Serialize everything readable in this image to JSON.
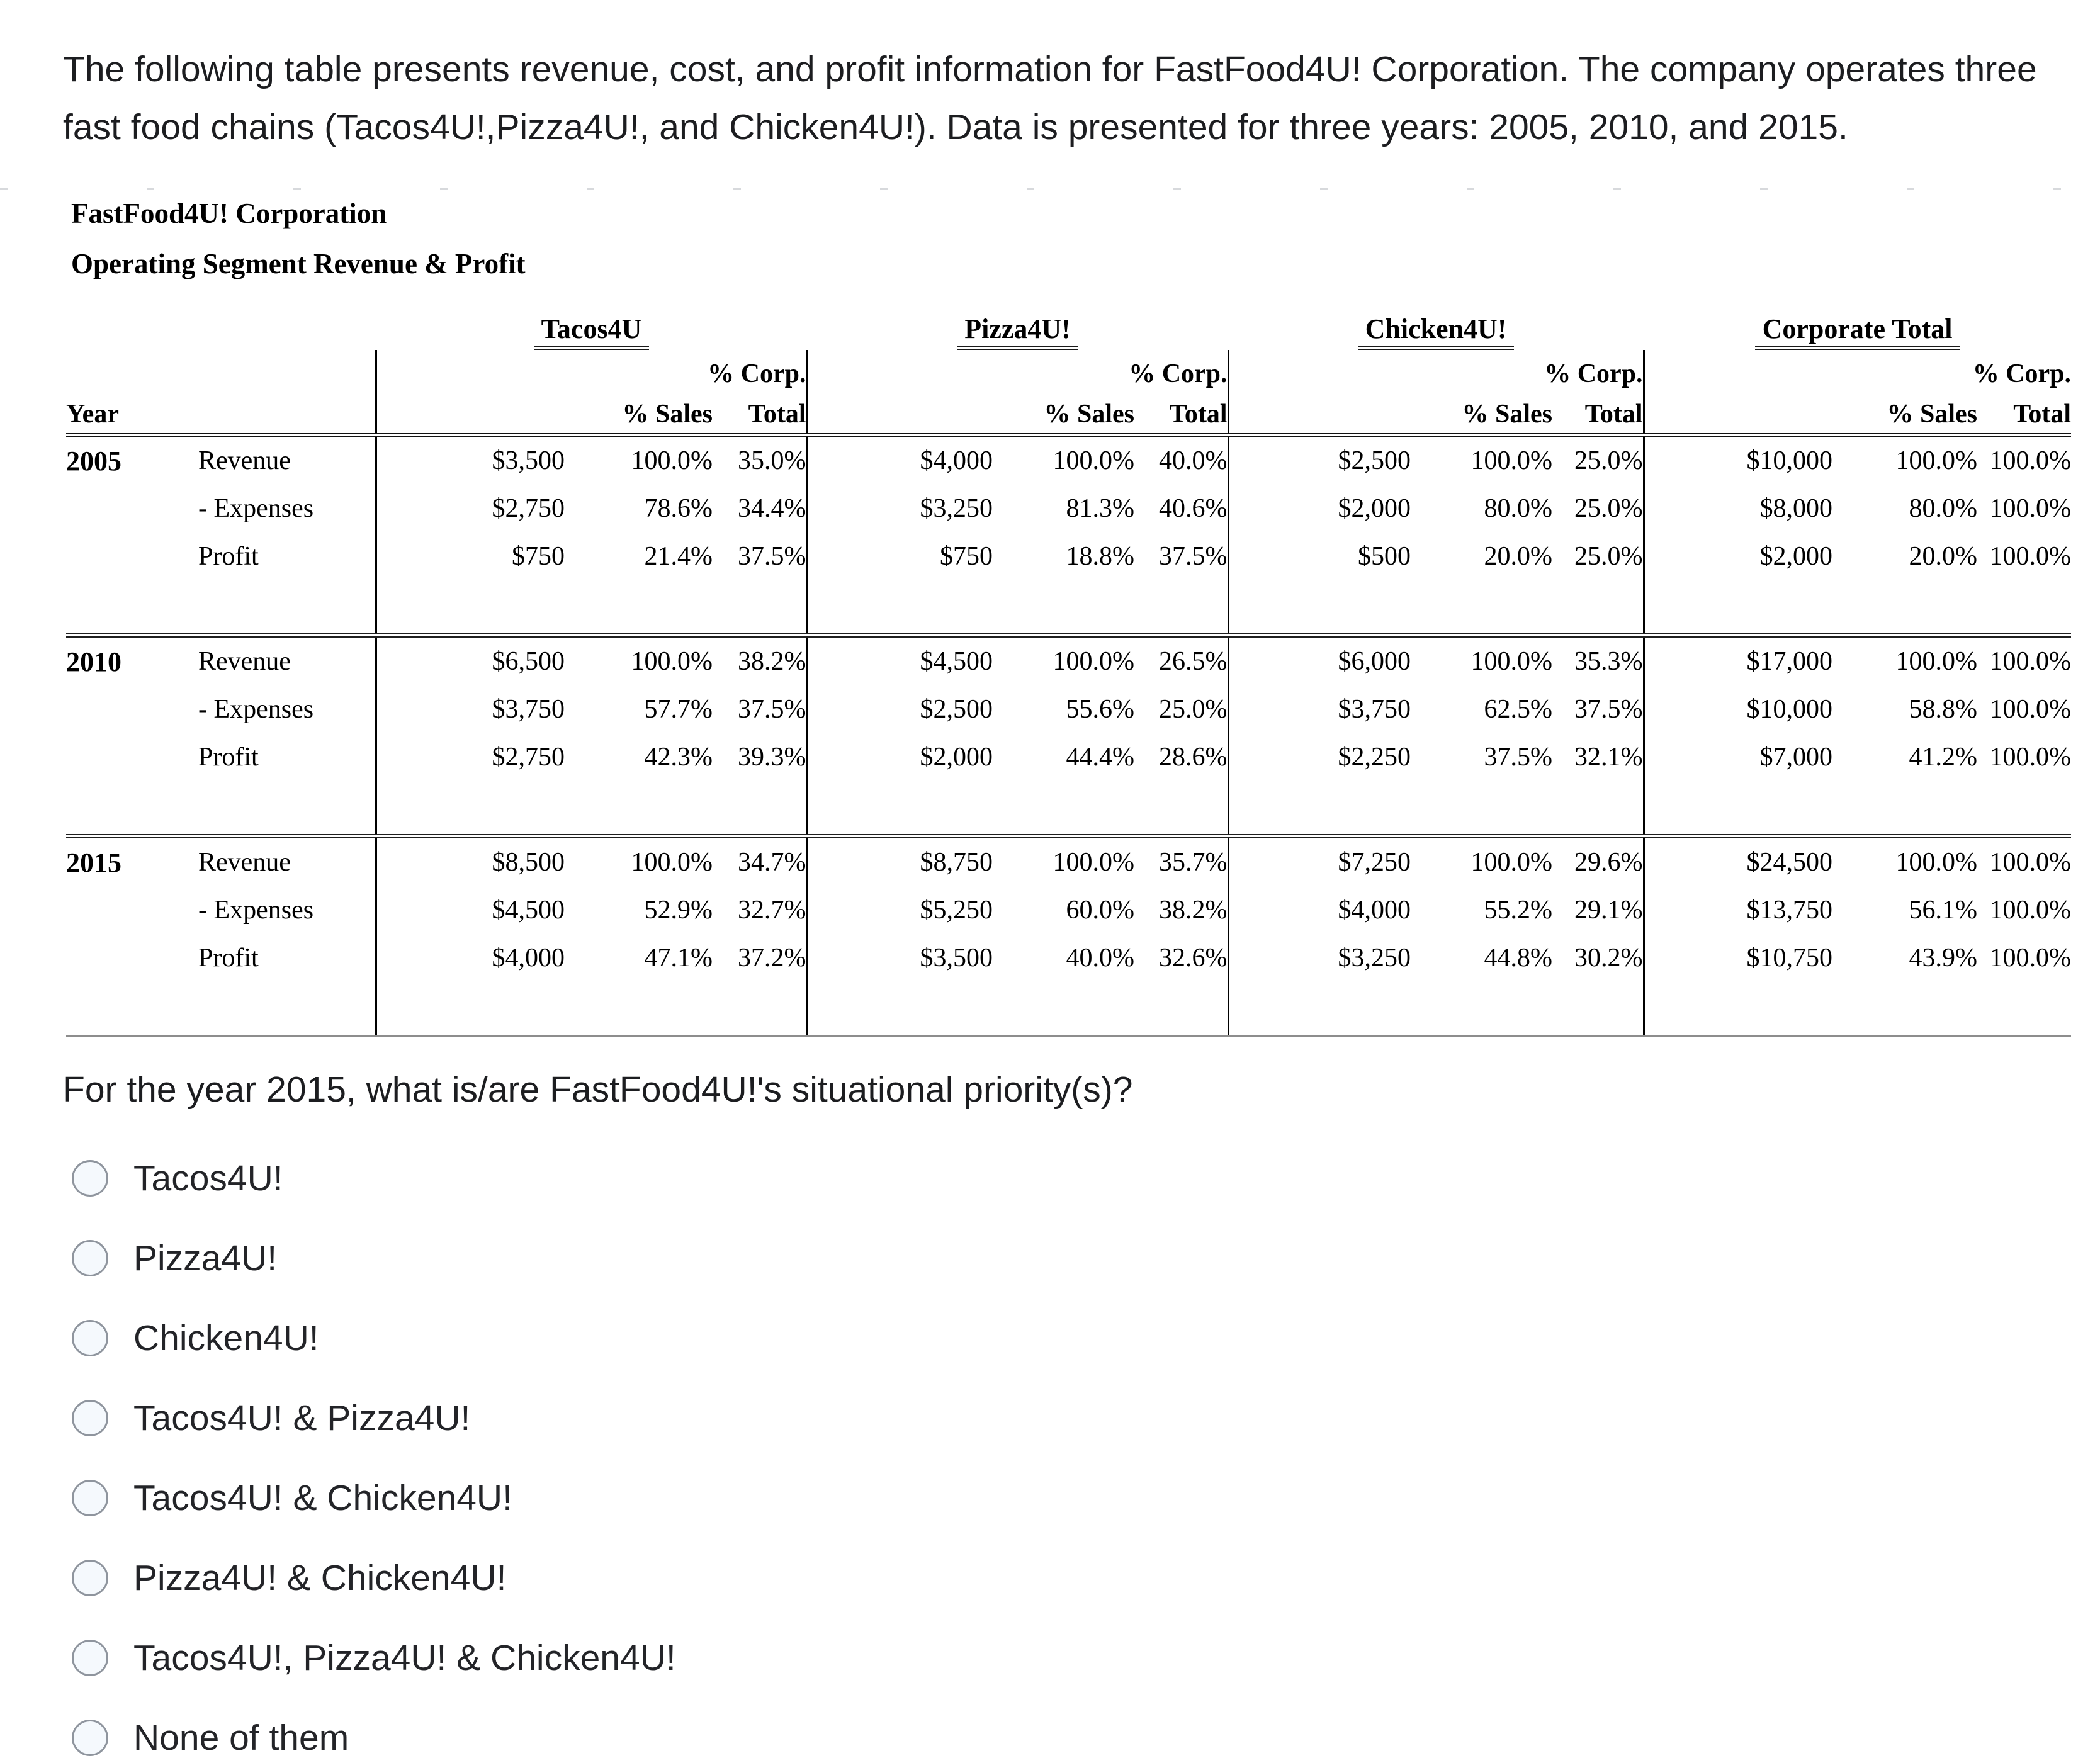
{
  "intro": {
    "line1": "The following table presents revenue, cost, and profit information for FastFood4U! Corporation. The company operates three",
    "line2": "fast food chains (Tacos4U!,Pizza4U!, and Chicken4U!). Data is presented for three years: 2005, 2010, and 2015."
  },
  "table": {
    "company_title": "FastFood4U! Corporation",
    "subtitle": "Operating Segment Revenue & Profit",
    "segment_headers": [
      "Tacos4U",
      "Pizza4U!",
      "Chicken4U!",
      "Corporate Total"
    ],
    "year_header": "Year",
    "metric_headers": {
      "pct_corp_line1": "% Corp.",
      "pct_sales": "% Sales",
      "pct_corp_line2": "Total"
    },
    "years": [
      {
        "year": "2005",
        "rows": [
          {
            "label": "Revenue",
            "cells": [
              "$3,500",
              "100.0%",
              "35.0%",
              "$4,000",
              "100.0%",
              "40.0%",
              "$2,500",
              "100.0%",
              "25.0%",
              "$10,000",
              "100.0%",
              "100.0%"
            ]
          },
          {
            "label": "- Expenses",
            "cells": [
              "$2,750",
              "78.6%",
              "34.4%",
              "$3,250",
              "81.3%",
              "40.6%",
              "$2,000",
              "80.0%",
              "25.0%",
              "$8,000",
              "80.0%",
              "100.0%"
            ]
          },
          {
            "label": "Profit",
            "cells": [
              "$750",
              "21.4%",
              "37.5%",
              "$750",
              "18.8%",
              "37.5%",
              "$500",
              "20.0%",
              "25.0%",
              "$2,000",
              "20.0%",
              "100.0%"
            ]
          }
        ]
      },
      {
        "year": "2010",
        "rows": [
          {
            "label": "Revenue",
            "cells": [
              "$6,500",
              "100.0%",
              "38.2%",
              "$4,500",
              "100.0%",
              "26.5%",
              "$6,000",
              "100.0%",
              "35.3%",
              "$17,000",
              "100.0%",
              "100.0%"
            ]
          },
          {
            "label": "- Expenses",
            "cells": [
              "$3,750",
              "57.7%",
              "37.5%",
              "$2,500",
              "55.6%",
              "25.0%",
              "$3,750",
              "62.5%",
              "37.5%",
              "$10,000",
              "58.8%",
              "100.0%"
            ]
          },
          {
            "label": "Profit",
            "cells": [
              "$2,750",
              "42.3%",
              "39.3%",
              "$2,000",
              "44.4%",
              "28.6%",
              "$2,250",
              "37.5%",
              "32.1%",
              "$7,000",
              "41.2%",
              "100.0%"
            ]
          }
        ]
      },
      {
        "year": "2015",
        "rows": [
          {
            "label": "Revenue",
            "cells": [
              "$8,500",
              "100.0%",
              "34.7%",
              "$8,750",
              "100.0%",
              "35.7%",
              "$7,250",
              "100.0%",
              "29.6%",
              "$24,500",
              "100.0%",
              "100.0%"
            ]
          },
          {
            "label": "- Expenses",
            "cells": [
              "$4,500",
              "52.9%",
              "32.7%",
              "$5,250",
              "60.0%",
              "38.2%",
              "$4,000",
              "55.2%",
              "29.1%",
              "$13,750",
              "56.1%",
              "100.0%"
            ]
          },
          {
            "label": "Profit",
            "cells": [
              "$4,000",
              "47.1%",
              "37.2%",
              "$3,500",
              "40.0%",
              "32.6%",
              "$3,250",
              "44.8%",
              "30.2%",
              "$10,750",
              "43.9%",
              "100.0%"
            ]
          }
        ]
      }
    ]
  },
  "question": {
    "text": "For the year 2015, what is/are FastFood4U!'s situational priority(s)?"
  },
  "options": [
    {
      "label": "Tacos4U!",
      "selected": false
    },
    {
      "label": "Pizza4U!",
      "selected": false
    },
    {
      "label": "Chicken4U!",
      "selected": false
    },
    {
      "label": "Tacos4U! & Pizza4U!",
      "selected": false
    },
    {
      "label": "Tacos4U! & Chicken4U!",
      "selected": false
    },
    {
      "label": "Pizza4U! & Chicken4U!",
      "selected": false
    },
    {
      "label": "Tacos4U!, Pizza4U! & Chicken4U!",
      "selected": false
    },
    {
      "label": "None of them",
      "selected": false
    }
  ],
  "colors": {
    "body_text": "#1c1d20",
    "table_text": "#000000",
    "radio_border": "#8f959e",
    "radio_fill": "#f5f9fd",
    "tick_divider": "#d7d9dc"
  }
}
